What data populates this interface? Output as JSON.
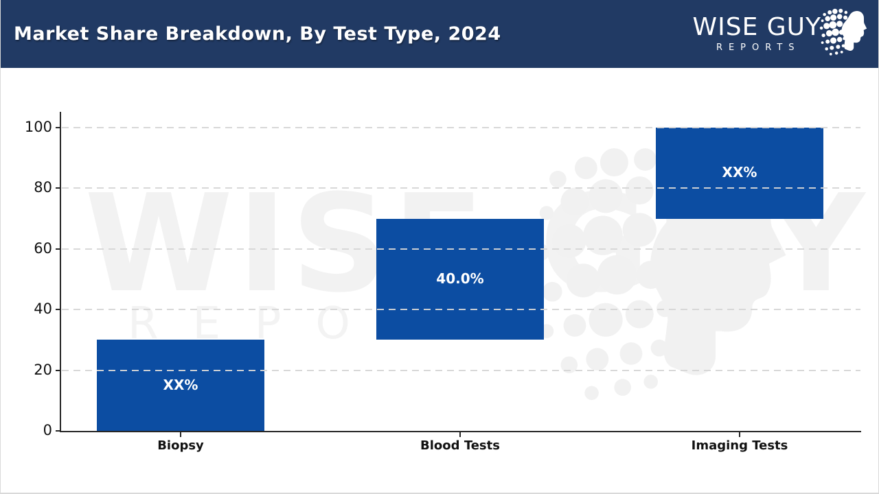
{
  "header": {
    "title": "Market Share Breakdown, By Test Type, 2024",
    "logo_name": "WISE GUY",
    "logo_sub": "REPORTS"
  },
  "watermark": {
    "line1": "WISE GUY",
    "line2": "REPORTS"
  },
  "colors": {
    "header_bg": "#213a64",
    "bar": "#0c4da2",
    "axis": "#262626",
    "grid": "#d6d6d6",
    "title_text": "#ffffff",
    "bar_label_text": "#ffffff",
    "watermark_text": "#f2f2f2",
    "page_border": "#d9d9d9"
  },
  "chart_data": {
    "type": "bar",
    "subtype": "floating-waterfall",
    "title": "Market Share Breakdown, By Test Type, 2024",
    "categories": [
      "Biopsy",
      "Blood Tests",
      "Imaging Tests"
    ],
    "series": [
      {
        "name": "Market Share",
        "segments": [
          {
            "category": "Biopsy",
            "start": 0,
            "end": 30,
            "label": "XX%"
          },
          {
            "category": "Blood Tests",
            "start": 30,
            "end": 70,
            "label": "40.0%"
          },
          {
            "category": "Imaging Tests",
            "start": 70,
            "end": 100,
            "label": "XX%"
          }
        ]
      }
    ],
    "yticks": [
      0,
      20,
      40,
      60,
      80,
      100
    ],
    "ylim": [
      0,
      105
    ],
    "xlabel": "",
    "ylabel": "",
    "grid": "horizontal-dashed",
    "legend": "none"
  }
}
